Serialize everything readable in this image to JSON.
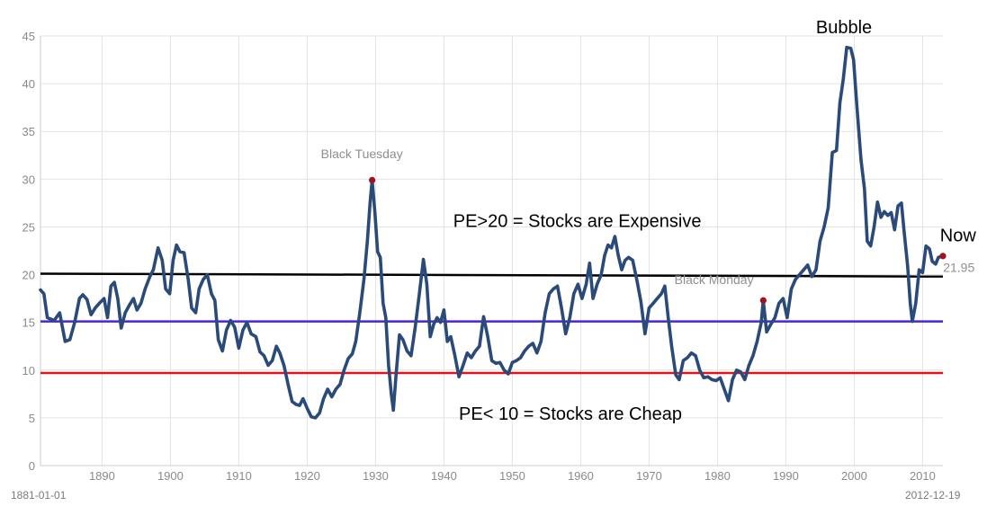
{
  "chart_data": {
    "type": "line",
    "title": "",
    "xlabel": "",
    "ylabel": "",
    "xlim": [
      1881,
      2012.97
    ],
    "ylim": [
      0,
      45
    ],
    "grid": true,
    "x_ticks": [
      "1890",
      "1900",
      "1910",
      "1920",
      "1930",
      "1940",
      "1950",
      "1960",
      "1970",
      "1980",
      "1990",
      "2000",
      "2010"
    ],
    "y_ticks": [
      "0",
      "5",
      "10",
      "15",
      "20",
      "25",
      "30",
      "35",
      "40",
      "45"
    ],
    "start_label": "1881-01-01",
    "end_label": "2012-12-19",
    "series": [
      {
        "color": "#2a4a7a",
        "points": [
          [
            1881.0,
            18.4
          ],
          [
            1881.5,
            18.0
          ],
          [
            1882.0,
            15.5
          ],
          [
            1883.0,
            15.2
          ],
          [
            1883.8,
            16.0
          ],
          [
            1884.6,
            13.0
          ],
          [
            1885.3,
            13.2
          ],
          [
            1886.0,
            15.0
          ],
          [
            1886.7,
            17.5
          ],
          [
            1887.2,
            17.9
          ],
          [
            1887.8,
            17.4
          ],
          [
            1888.4,
            15.8
          ],
          [
            1889.0,
            16.5
          ],
          [
            1889.6,
            17.0
          ],
          [
            1890.3,
            17.5
          ],
          [
            1890.8,
            15.5
          ],
          [
            1891.3,
            18.8
          ],
          [
            1891.8,
            19.2
          ],
          [
            1892.3,
            17.5
          ],
          [
            1892.8,
            14.4
          ],
          [
            1893.4,
            16.0
          ],
          [
            1894.0,
            16.8
          ],
          [
            1894.6,
            17.5
          ],
          [
            1895.1,
            16.3
          ],
          [
            1895.7,
            17.0
          ],
          [
            1896.3,
            18.5
          ],
          [
            1897.0,
            19.8
          ],
          [
            1897.5,
            20.5
          ],
          [
            1898.2,
            22.8
          ],
          [
            1898.8,
            21.5
          ],
          [
            1899.3,
            18.5
          ],
          [
            1899.9,
            18.0
          ],
          [
            1900.4,
            21.5
          ],
          [
            1900.9,
            23.1
          ],
          [
            1901.4,
            22.4
          ],
          [
            1902.0,
            22.3
          ],
          [
            1902.6,
            19.5
          ],
          [
            1903.1,
            16.5
          ],
          [
            1903.7,
            16.0
          ],
          [
            1904.2,
            18.5
          ],
          [
            1904.8,
            19.5
          ],
          [
            1905.4,
            20.0
          ],
          [
            1906.0,
            18.0
          ],
          [
            1906.5,
            17.3
          ],
          [
            1907.0,
            13.2
          ],
          [
            1907.6,
            12.0
          ],
          [
            1908.2,
            14.2
          ],
          [
            1908.8,
            15.2
          ],
          [
            1909.4,
            14.5
          ],
          [
            1910.0,
            12.3
          ],
          [
            1910.6,
            14.2
          ],
          [
            1911.2,
            15.0
          ],
          [
            1911.8,
            13.8
          ],
          [
            1912.5,
            13.5
          ],
          [
            1913.1,
            11.9
          ],
          [
            1913.7,
            11.5
          ],
          [
            1914.3,
            10.5
          ],
          [
            1914.9,
            11.0
          ],
          [
            1915.5,
            12.5
          ],
          [
            1916.0,
            11.8
          ],
          [
            1916.6,
            10.5
          ],
          [
            1917.3,
            8.2
          ],
          [
            1917.8,
            6.7
          ],
          [
            1918.4,
            6.4
          ],
          [
            1918.9,
            6.3
          ],
          [
            1919.4,
            7.0
          ],
          [
            1920.0,
            6.0
          ],
          [
            1920.6,
            5.1
          ],
          [
            1921.2,
            5.0
          ],
          [
            1921.8,
            5.5
          ],
          [
            1922.4,
            7.0
          ],
          [
            1923.0,
            8.0
          ],
          [
            1923.6,
            7.2
          ],
          [
            1924.2,
            8.0
          ],
          [
            1924.8,
            8.5
          ],
          [
            1925.4,
            10.0
          ],
          [
            1926.0,
            11.2
          ],
          [
            1926.6,
            11.7
          ],
          [
            1927.1,
            13.0
          ],
          [
            1927.7,
            16.0
          ],
          [
            1928.3,
            19.5
          ],
          [
            1928.8,
            23.5
          ],
          [
            1929.2,
            27.5
          ],
          [
            1929.5,
            29.9
          ],
          [
            1929.9,
            26.5
          ],
          [
            1930.3,
            22.4
          ],
          [
            1930.7,
            21.8
          ],
          [
            1931.1,
            17.0
          ],
          [
            1931.5,
            15.5
          ],
          [
            1931.9,
            10.5
          ],
          [
            1932.3,
            7.5
          ],
          [
            1932.6,
            5.8
          ],
          [
            1933.0,
            9.5
          ],
          [
            1933.5,
            13.7
          ],
          [
            1934.0,
            13.2
          ],
          [
            1934.6,
            12.0
          ],
          [
            1935.2,
            11.5
          ],
          [
            1935.8,
            14.5
          ],
          [
            1936.4,
            18.0
          ],
          [
            1937.0,
            21.6
          ],
          [
            1937.5,
            19.0
          ],
          [
            1938.0,
            13.5
          ],
          [
            1938.5,
            14.8
          ],
          [
            1939.0,
            15.5
          ],
          [
            1939.5,
            15.0
          ],
          [
            1940.0,
            16.3
          ],
          [
            1940.5,
            13.0
          ],
          [
            1941.0,
            13.5
          ],
          [
            1941.6,
            11.5
          ],
          [
            1942.2,
            9.3
          ],
          [
            1942.8,
            10.5
          ],
          [
            1943.4,
            11.8
          ],
          [
            1944.0,
            11.3
          ],
          [
            1944.6,
            12.0
          ],
          [
            1945.2,
            12.5
          ],
          [
            1945.8,
            15.6
          ],
          [
            1946.4,
            13.5
          ],
          [
            1947.0,
            11.0
          ],
          [
            1947.6,
            10.7
          ],
          [
            1948.2,
            10.8
          ],
          [
            1948.8,
            10.0
          ],
          [
            1949.4,
            9.6
          ],
          [
            1950.0,
            10.8
          ],
          [
            1950.6,
            11.0
          ],
          [
            1951.2,
            11.3
          ],
          [
            1951.8,
            12.0
          ],
          [
            1952.4,
            12.5
          ],
          [
            1953.0,
            12.8
          ],
          [
            1953.6,
            11.8
          ],
          [
            1954.2,
            13.0
          ],
          [
            1954.8,
            16.0
          ],
          [
            1955.4,
            18.0
          ],
          [
            1956.0,
            18.5
          ],
          [
            1956.6,
            18.8
          ],
          [
            1957.2,
            16.5
          ],
          [
            1957.8,
            13.8
          ],
          [
            1958.4,
            15.5
          ],
          [
            1959.0,
            18.0
          ],
          [
            1959.6,
            19.0
          ],
          [
            1960.2,
            17.5
          ],
          [
            1960.8,
            19.0
          ],
          [
            1961.3,
            21.2
          ],
          [
            1961.8,
            17.5
          ],
          [
            1962.4,
            19.0
          ],
          [
            1963.0,
            20.0
          ],
          [
            1963.5,
            22.0
          ],
          [
            1964.0,
            23.1
          ],
          [
            1964.5,
            22.8
          ],
          [
            1965.0,
            24.0
          ],
          [
            1965.5,
            22.0
          ],
          [
            1966.0,
            20.5
          ],
          [
            1966.5,
            21.5
          ],
          [
            1967.0,
            21.8
          ],
          [
            1967.6,
            21.5
          ],
          [
            1968.2,
            19.5
          ],
          [
            1968.8,
            17.2
          ],
          [
            1969.4,
            13.8
          ],
          [
            1970.0,
            16.5
          ],
          [
            1970.6,
            17.0
          ],
          [
            1971.2,
            17.5
          ],
          [
            1971.8,
            18.0
          ],
          [
            1972.3,
            18.8
          ],
          [
            1972.8,
            15.5
          ],
          [
            1973.3,
            12.5
          ],
          [
            1973.9,
            9.5
          ],
          [
            1974.4,
            9.0
          ],
          [
            1975.0,
            11.0
          ],
          [
            1975.6,
            11.3
          ],
          [
            1976.2,
            11.8
          ],
          [
            1976.8,
            11.5
          ],
          [
            1977.4,
            10.0
          ],
          [
            1978.0,
            9.2
          ],
          [
            1978.6,
            9.3
          ],
          [
            1979.2,
            9.0
          ],
          [
            1979.8,
            8.9
          ],
          [
            1980.4,
            9.2
          ],
          [
            1981.0,
            8.0
          ],
          [
            1981.6,
            6.8
          ],
          [
            1982.2,
            9.0
          ],
          [
            1982.8,
            10.0
          ],
          [
            1983.4,
            9.8
          ],
          [
            1984.0,
            9.0
          ],
          [
            1984.6,
            10.5
          ],
          [
            1985.2,
            11.5
          ],
          [
            1985.8,
            13.0
          ],
          [
            1986.4,
            15.0
          ],
          [
            1986.7,
            17.3
          ],
          [
            1987.2,
            14.0
          ],
          [
            1987.8,
            14.8
          ],
          [
            1988.4,
            15.5
          ],
          [
            1989.0,
            17.0
          ],
          [
            1989.6,
            17.5
          ],
          [
            1990.2,
            15.5
          ],
          [
            1990.8,
            18.5
          ],
          [
            1991.4,
            19.5
          ],
          [
            1992.0,
            20.0
          ],
          [
            1992.6,
            20.5
          ],
          [
            1993.2,
            21.0
          ],
          [
            1993.8,
            19.8
          ],
          [
            1994.4,
            20.5
          ],
          [
            1995.0,
            23.5
          ],
          [
            1995.6,
            25.0
          ],
          [
            1996.2,
            27.0
          ],
          [
            1996.8,
            32.8
          ],
          [
            1997.4,
            33.0
          ],
          [
            1997.9,
            38.0
          ],
          [
            1998.4,
            40.5
          ],
          [
            1998.9,
            43.8
          ],
          [
            1999.5,
            43.7
          ],
          [
            1999.9,
            42.5
          ],
          [
            2000.4,
            37.5
          ],
          [
            2001.0,
            32.0
          ],
          [
            2001.5,
            29.0
          ],
          [
            2001.9,
            23.5
          ],
          [
            2002.4,
            23.0
          ],
          [
            2002.9,
            25.0
          ],
          [
            2003.4,
            27.6
          ],
          [
            2003.9,
            26.0
          ],
          [
            2004.4,
            26.6
          ],
          [
            2004.9,
            26.2
          ],
          [
            2005.4,
            26.5
          ],
          [
            2005.9,
            24.7
          ],
          [
            2006.4,
            27.2
          ],
          [
            2006.9,
            27.5
          ],
          [
            2007.3,
            24.5
          ],
          [
            2007.8,
            21.0
          ],
          [
            2008.2,
            17.0
          ],
          [
            2008.5,
            15.1
          ],
          [
            2009.0,
            17.0
          ],
          [
            2009.5,
            20.5
          ],
          [
            2010.0,
            20.2
          ],
          [
            2010.5,
            23.0
          ],
          [
            2011.0,
            22.7
          ],
          [
            2011.4,
            21.4
          ],
          [
            2011.9,
            21.1
          ],
          [
            2012.3,
            21.8
          ],
          [
            2012.97,
            21.95
          ]
        ]
      }
    ],
    "reference_lines": [
      {
        "color": "#000000",
        "y_start": 20.1,
        "y_end": 19.8
      },
      {
        "color": "#4b23e6",
        "y_start": 15.1,
        "y_end": 15.1
      },
      {
        "color": "#e2141b",
        "y_start": 9.7,
        "y_end": 9.7
      }
    ],
    "markers": [
      {
        "x": 1929.5,
        "y": 29.9,
        "color": "#a0121c"
      },
      {
        "x": 1986.7,
        "y": 17.3,
        "color": "#a0121c"
      },
      {
        "x": 2012.97,
        "y": 21.95,
        "color": "#a0121c"
      }
    ],
    "annotations": [
      {
        "text": "Black Tuesday",
        "style": "small",
        "x": 1928.0,
        "y": 32.2
      },
      {
        "text": "Black Monday",
        "style": "small",
        "x": 1979.5,
        "y": 19.0
      },
      {
        "text": "Bubble",
        "style": "big",
        "x": 1998.5,
        "y": 45.3
      },
      {
        "text": "PE>20 = Stocks are Expensive",
        "style": "big",
        "x": 1959.5,
        "y": 25.0
      },
      {
        "text": "PE< 10 = Stocks are Cheap",
        "style": "big",
        "x": 1958.5,
        "y": 4.8
      },
      {
        "text": "Now",
        "style": "big-left",
        "x": 2012.55,
        "y": 23.5
      },
      {
        "text": "21.95",
        "style": "small-left",
        "x": 2013.0,
        "y": 20.3
      }
    ]
  }
}
